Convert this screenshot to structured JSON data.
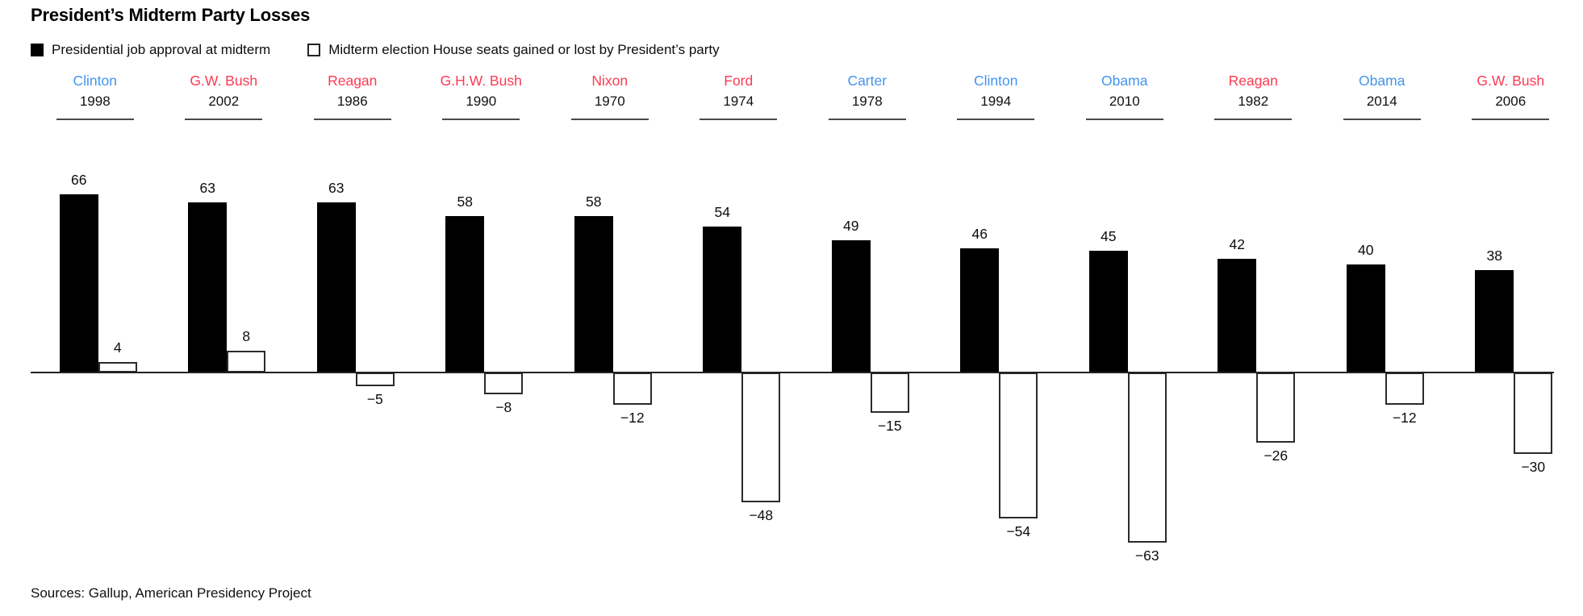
{
  "title": "President’s Midterm Party Losses",
  "legend": {
    "approval_label": "Presidential job approval at midterm",
    "seats_label": "Midterm election House seats gained or lost by President’s party"
  },
  "footer": {
    "sources": "Sources: Gallup, American Presidency Project"
  },
  "party_colors": {
    "democrat": "#4394f0",
    "republican": "#fb3a52"
  },
  "bar_colors": {
    "approval_fill": "#000000",
    "seats_fill": "#ffffff",
    "seats_border": "#2b2b2b"
  },
  "chart_data": {
    "type": "bar",
    "title": "President’s Midterm Party Losses",
    "categories": [
      {
        "president": "Clinton",
        "year": "1998",
        "party": "democrat"
      },
      {
        "president": "G.W. Bush",
        "year": "2002",
        "party": "republican"
      },
      {
        "president": "Reagan",
        "year": "1986",
        "party": "republican"
      },
      {
        "president": "G.H.W. Bush",
        "year": "1990",
        "party": "republican"
      },
      {
        "president": "Nixon",
        "year": "1970",
        "party": "republican"
      },
      {
        "president": "Ford",
        "year": "1974",
        "party": "republican"
      },
      {
        "president": "Carter",
        "year": "1978",
        "party": "democrat"
      },
      {
        "president": "Clinton",
        "year": "1994",
        "party": "democrat"
      },
      {
        "president": "Obama",
        "year": "2010",
        "party": "democrat"
      },
      {
        "president": "Reagan",
        "year": "1982",
        "party": "republican"
      },
      {
        "president": "Obama",
        "year": "2014",
        "party": "democrat"
      },
      {
        "president": "G.W. Bush",
        "year": "2006",
        "party": "republican"
      }
    ],
    "series": [
      {
        "name": "Presidential job approval at midterm",
        "style": "filled-black",
        "values": [
          66,
          63,
          63,
          58,
          58,
          54,
          49,
          46,
          45,
          42,
          40,
          38
        ],
        "labels": [
          "66",
          "63",
          "63",
          "58",
          "58",
          "54",
          "49",
          "46",
          "45",
          "42",
          "40",
          "38"
        ]
      },
      {
        "name": "Midterm election House seats gained or lost by President’s party",
        "style": "outlined-white",
        "values": [
          4,
          8,
          -5,
          -8,
          -12,
          -48,
          -15,
          -54,
          -63,
          -26,
          -12,
          -30
        ],
        "labels": [
          "4",
          "8",
          "−5",
          "−8",
          "−12",
          "−48",
          "−15",
          "−54",
          "−63",
          "−26",
          "−12",
          "−30"
        ]
      }
    ],
    "baseline": 0,
    "value_labels": "on",
    "grid": false,
    "axes_visible": false,
    "legend_position": "top-left",
    "sources": "Sources: Gallup, American Presidency Project"
  }
}
